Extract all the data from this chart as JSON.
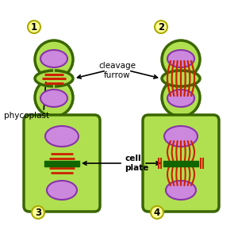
{
  "background_color": "#ffffff",
  "cell_outer_color": "#3a6600",
  "cell_inner_color": "#b0e050",
  "nucleus_color": "#cc88dd",
  "nucleus_edge_color": "#8833aa",
  "red_line_color": "#cc2200",
  "green_plate_color": "#116600",
  "number_circle_color": "#ffff99",
  "number_circle_edge": "#aaaa00",
  "figsize": [
    3.0,
    2.94
  ],
  "dpi": 100,
  "xlim": [
    0,
    300
  ],
  "ylim": [
    0,
    294
  ]
}
